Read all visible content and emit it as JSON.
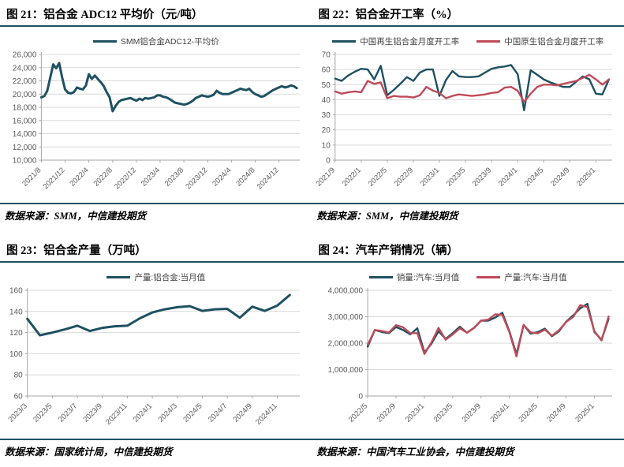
{
  "colors": {
    "navy": "#1E5162",
    "red": "#BE4B58",
    "axis": "#A6A6A6",
    "grid": "#D9D9D9",
    "axis_text": "#595959"
  },
  "panels": [
    {
      "title": "图 21：铝合金 ADC12 平均价（元/吨）",
      "source": "数据来源：SMM，中信建投期货"
    },
    {
      "title": "图 22：铝合金开工率（%）",
      "source": "数据来源：SMM，中信建投期货"
    },
    {
      "title": "图 23：铝合金产量（万吨）",
      "source": "数据来源：国家统计局，中信建投期货"
    },
    {
      "title": "图 24：汽车产销情况（辆）",
      "source": "数据来源：中国汽车工业协会，中信建投期货"
    }
  ],
  "chart_data": [
    {
      "type": "line",
      "title": "图 21：铝合金 ADC12 平均价（元/吨）",
      "xlabel": "",
      "ylabel": "",
      "ylim": [
        10000,
        26000
      ],
      "ystep": 2000,
      "y_format": "thousands",
      "grid": true,
      "legend_position": "top",
      "x_max": 43.5,
      "x_ticks": [
        {
          "m": 0,
          "label": "2021/8"
        },
        {
          "m": 4,
          "label": "2021/12"
        },
        {
          "m": 8,
          "label": "2022/4"
        },
        {
          "m": 12,
          "label": "2022/8"
        },
        {
          "m": 16,
          "label": "2022/12"
        },
        {
          "m": 20,
          "label": "2023/4"
        },
        {
          "m": 24,
          "label": "2023/8"
        },
        {
          "m": 28,
          "label": "2023/12"
        },
        {
          "m": 32,
          "label": "2024/4"
        },
        {
          "m": 36,
          "label": "2024/8"
        },
        {
          "m": 40,
          "label": "2024/12"
        }
      ],
      "series": [
        {
          "name": "SMM铝合金ADC12-平均价",
          "color": "#1E5162",
          "x_step": 0.5,
          "values": [
            19500,
            19700,
            20500,
            22500,
            24500,
            23900,
            24700,
            22500,
            20700,
            20200,
            20100,
            20300,
            21000,
            20800,
            20700,
            21300,
            23000,
            22300,
            22800,
            22300,
            21800,
            21200,
            20300,
            19500,
            17400,
            18200,
            18800,
            19100,
            19200,
            19300,
            19400,
            19200,
            19000,
            19300,
            19100,
            19400,
            19300,
            19400,
            19500,
            19800,
            19800,
            19600,
            19500,
            19300,
            19000,
            18700,
            18600,
            18500,
            18400,
            18500,
            18700,
            19000,
            19400,
            19600,
            19800,
            19700,
            19600,
            19700,
            19900,
            20500,
            20200,
            20000,
            20000,
            20000,
            20200,
            20400,
            20600,
            20800,
            20700,
            20600,
            20800,
            20300,
            20000,
            19800,
            19600,
            19700,
            20000,
            20300,
            20600,
            20800,
            21000,
            21200,
            21000,
            21100,
            21300,
            21200,
            20900
          ]
        }
      ]
    },
    {
      "type": "line",
      "title": "图 22：铝合金开工率（%）",
      "xlabel": "",
      "ylabel": "",
      "ylim": [
        0,
        70
      ],
      "ystep": 10,
      "y_format": "plain",
      "grid": true,
      "legend_position": "top",
      "x_max": 42.5,
      "x_ticks": [
        {
          "m": 0,
          "label": "2021/9"
        },
        {
          "m": 4,
          "label": "2022/1"
        },
        {
          "m": 8,
          "label": "2022/5"
        },
        {
          "m": 12,
          "label": "2022/9"
        },
        {
          "m": 16,
          "label": "2023/1"
        },
        {
          "m": 20,
          "label": "2023/5"
        },
        {
          "m": 24,
          "label": "2023/9"
        },
        {
          "m": 28,
          "label": "2024/1"
        },
        {
          "m": 32,
          "label": "2024/5"
        },
        {
          "m": 36,
          "label": "2024/9"
        },
        {
          "m": 40,
          "label": "2025/1"
        }
      ],
      "series": [
        {
          "name": "中国再生铝合金月度开工率",
          "color": "#1E5162",
          "x_step": 1,
          "values": [
            54,
            52.5,
            56,
            58.5,
            60.5,
            60,
            53.5,
            62.5,
            43,
            46.5,
            50.5,
            55,
            52.5,
            58,
            60,
            60,
            42.5,
            53,
            59,
            55.5,
            55,
            55,
            55.5,
            58,
            60.5,
            61.5,
            62,
            63,
            57,
            33,
            59.5,
            56.5,
            53.5,
            51.5,
            50,
            48.5,
            48.5,
            52,
            55.5,
            53.5,
            44,
            43.5,
            53.5
          ]
        },
        {
          "name": "中国原生铝合金月度开工率",
          "color": "#BE4B58",
          "x_step": 1,
          "values": [
            45.5,
            44,
            45,
            45.5,
            45,
            52.5,
            50.5,
            51.5,
            41,
            42.5,
            42,
            42,
            41.5,
            43,
            48.5,
            46,
            44.5,
            41,
            42.5,
            43.5,
            43,
            42.5,
            43,
            43.5,
            44.5,
            45,
            48,
            48.5,
            46,
            38.5,
            44,
            48.5,
            50,
            50,
            49.5,
            50.5,
            51.5,
            52.5,
            54.5,
            56.5,
            53.5,
            50,
            53.5
          ]
        }
      ]
    },
    {
      "type": "line",
      "title": "图 23：铝合金产量（万吨）",
      "xlabel": "",
      "ylabel": "",
      "ylim": [
        60,
        160
      ],
      "ystep": 20,
      "y_format": "plain",
      "grid": true,
      "legend_position": "top",
      "x_max": 21.8,
      "x_ticks": [
        {
          "m": 0,
          "label": "2023/3"
        },
        {
          "m": 2,
          "label": "2023/5"
        },
        {
          "m": 4,
          "label": "2023/7"
        },
        {
          "m": 6,
          "label": "2023/9"
        },
        {
          "m": 8,
          "label": "2023/11"
        },
        {
          "m": 10,
          "label": "2024/1"
        },
        {
          "m": 12,
          "label": "2024/3"
        },
        {
          "m": 14,
          "label": "2024/5"
        },
        {
          "m": 16,
          "label": "2024/7"
        },
        {
          "m": 18,
          "label": "2024/9"
        },
        {
          "m": 20,
          "label": "2024/11"
        }
      ],
      "series": [
        {
          "name": "产量:铝合金:当月值",
          "color": "#1E5162",
          "x_step": 1,
          "values": [
            133,
            117.5,
            120,
            123,
            126.5,
            121.5,
            124.5,
            126,
            126.5,
            133.5,
            139,
            142,
            144,
            145,
            140.5,
            142,
            142.5,
            134,
            144.5,
            140.5,
            145.5,
            155.5
          ]
        }
      ]
    },
    {
      "type": "line",
      "title": "图 24：汽车产销情况（辆）",
      "xlabel": "",
      "ylabel": "",
      "ylim": [
        0,
        4000000
      ],
      "ystep": 1000000,
      "y_format": "thousands",
      "grid": true,
      "legend_position": "top",
      "x_max": 34.5,
      "x_ticks": [
        {
          "m": 0,
          "label": "2022/5"
        },
        {
          "m": 4,
          "label": "2022/9"
        },
        {
          "m": 8,
          "label": "2023/1"
        },
        {
          "m": 12,
          "label": "2023/5"
        },
        {
          "m": 16,
          "label": "2023/9"
        },
        {
          "m": 20,
          "label": "2024/1"
        },
        {
          "m": 24,
          "label": "2024/5"
        },
        {
          "m": 28,
          "label": "2024/9"
        },
        {
          "m": 32,
          "label": "2025/1"
        }
      ],
      "series": [
        {
          "name": "销量:汽车:当月值",
          "color": "#1E5162",
          "x_step": 1,
          "values": [
            1870000,
            2500000,
            2420000,
            2380000,
            2610000,
            2500000,
            2330000,
            2560000,
            1650000,
            1980000,
            2450000,
            2160000,
            2380000,
            2620000,
            2390000,
            2580000,
            2850000,
            2850000,
            2970000,
            3150000,
            2440000,
            1580000,
            2690000,
            2360000,
            2420000,
            2550000,
            2260000,
            2450000,
            2810000,
            3050000,
            3320000,
            3490000,
            2420000,
            2130000,
            2920000
          ]
        },
        {
          "name": "产量:汽车:当月值",
          "color": "#BE4B58",
          "x_step": 1,
          "values": [
            1930000,
            2500000,
            2460000,
            2400000,
            2680000,
            2600000,
            2380000,
            2380000,
            1590000,
            2030000,
            2580000,
            2130000,
            2330000,
            2560000,
            2400000,
            2570000,
            2850000,
            2890000,
            3090000,
            3070000,
            2410000,
            1500000,
            2690000,
            2410000,
            2370000,
            2510000,
            2280000,
            2490000,
            2800000,
            2990000,
            3440000,
            3360000,
            2450000,
            2100000,
            3010000
          ]
        }
      ]
    }
  ]
}
